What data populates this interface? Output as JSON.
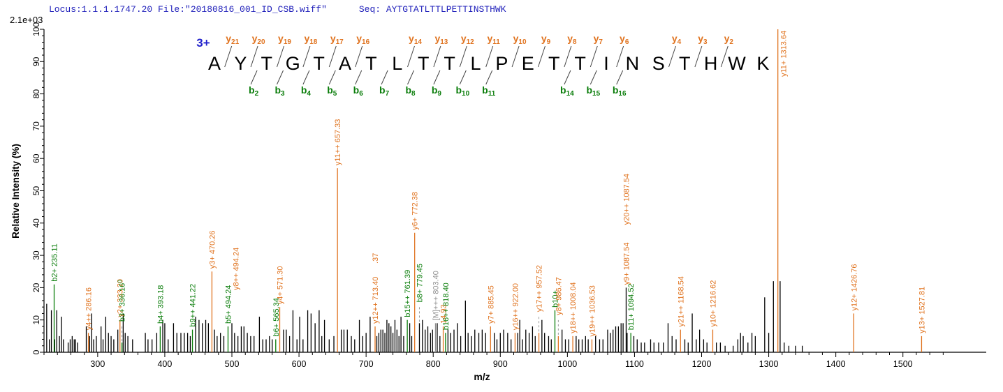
{
  "header": {
    "locus_file": "Locus:1.1.1.1747.20 File:\"20180816_001_ID_CSB.wiff\"",
    "seq": "Seq: AYTGTATLTTLPETTINSTHWK"
  },
  "scale_note": "2.1e+03",
  "precursor_charge": "3+",
  "colors": {
    "b_ion": "#0a7d0a",
    "y_ion": "#e0731f",
    "precursor": "#909090",
    "peak": "#000000",
    "header_blue": "#2222bb",
    "charge_blue": "#2222cc",
    "axis": "#000000"
  },
  "peptide": {
    "residues": [
      "A",
      "Y",
      "T",
      "G",
      "T",
      "A",
      "T",
      "L",
      "T",
      "T",
      "L",
      "P",
      "E",
      "T",
      "T",
      "I",
      "N",
      "S",
      "T",
      "H",
      "W",
      "K"
    ],
    "y_ions": [
      {
        "n": "21",
        "boundary": 1
      },
      {
        "n": "20",
        "boundary": 2
      },
      {
        "n": "19",
        "boundary": 3
      },
      {
        "n": "18",
        "boundary": 4
      },
      {
        "n": "17",
        "boundary": 5
      },
      {
        "n": "16",
        "boundary": 6
      },
      {
        "n": "14",
        "boundary": 8
      },
      {
        "n": "13",
        "boundary": 9
      },
      {
        "n": "12",
        "boundary": 10
      },
      {
        "n": "11",
        "boundary": 11
      },
      {
        "n": "10",
        "boundary": 12
      },
      {
        "n": "9",
        "boundary": 13
      },
      {
        "n": "8",
        "boundary": 14
      },
      {
        "n": "7",
        "boundary": 15
      },
      {
        "n": "6",
        "boundary": 16
      },
      {
        "n": "4",
        "boundary": 18
      },
      {
        "n": "3",
        "boundary": 19
      },
      {
        "n": "2",
        "boundary": 20
      }
    ],
    "b_ions": [
      {
        "n": "2",
        "boundary": 2
      },
      {
        "n": "3",
        "boundary": 3
      },
      {
        "n": "4",
        "boundary": 4
      },
      {
        "n": "5",
        "boundary": 5
      },
      {
        "n": "6",
        "boundary": 6
      },
      {
        "n": "7",
        "boundary": 7
      },
      {
        "n": "8",
        "boundary": 8
      },
      {
        "n": "9",
        "boundary": 9
      },
      {
        "n": "10",
        "boundary": 10
      },
      {
        "n": "11",
        "boundary": 11
      },
      {
        "n": "14",
        "boundary": 14
      },
      {
        "n": "15",
        "boundary": 15
      },
      {
        "n": "16",
        "boundary": 16
      }
    ]
  },
  "axes": {
    "x_label": "m/z",
    "y_label": "Relative  Intensity  (%)",
    "x_min": 220,
    "x_max": 1620,
    "x_major_ticks": [
      300,
      400,
      500,
      600,
      700,
      800,
      900,
      1000,
      1100,
      1200,
      1300,
      1400,
      1500
    ],
    "x_minor_step": 20,
    "y_min": 0,
    "y_max": 100,
    "y_major_step": 10,
    "y_minor_step": 2
  },
  "chart_data": {
    "type": "bar",
    "subtype": "ms2_peptide_fragment_spectrum",
    "title": "",
    "xlabel": "m/z",
    "ylabel": "Relative Intensity (%)",
    "xlim": [
      220,
      1620
    ],
    "ylim": [
      0,
      100
    ],
    "base_peak_intensity": "2.1e+03",
    "sequence": "AYTGTATLTTLPETTINSTHWK",
    "labeled_peaks": [
      {
        "mz": 235.11,
        "pct": 21,
        "ion": "b",
        "label": "b2+ 235.11"
      },
      {
        "mz": 286.16,
        "pct": 6,
        "ion": "y",
        "label": "y4++ 286.16"
      },
      {
        "mz": 333.2,
        "pct": 10,
        "ion": "y",
        "label": "y2+ 333.20"
      },
      {
        "mz": 336.16,
        "pct": 3,
        "ion": "b",
        "label": "b3+ 336.16",
        "sup": "0",
        "dashed": true
      },
      {
        "mz": 393.18,
        "pct": 8,
        "ion": "b",
        "label": "b4+ 393.18"
      },
      {
        "mz": 441.22,
        "pct": 7,
        "ion": "b",
        "label": "b9++ 441.22"
      },
      {
        "mz": 470.26,
        "pct": 25,
        "ion": "y",
        "label": "y3+ 470.26"
      },
      {
        "mz": 494.24,
        "pct": 8,
        "ion": "b",
        "label": "b5+ 494.24",
        "label2": {
          "text": "y8++ 494.24",
          "ion": "y",
          "dx": 11,
          "raise": 48
        }
      },
      {
        "mz": 565.34,
        "pct": 4,
        "ion": "b",
        "label": "b6+ 565.34"
      },
      {
        "mz": 571.3,
        "pct": 14,
        "ion": "y",
        "label": "y4+ 571.30"
      },
      {
        "mz": 657.33,
        "pct": 57,
        "ion": "y",
        "label": "y11++ 657.33"
      },
      {
        "mz": 713.4,
        "pct": 8,
        "ion": "y",
        "label": "y12++ 713.40",
        "frag": ".37"
      },
      {
        "mz": 761.39,
        "pct": 10,
        "ion": "b",
        "label": "b15++ 761.39"
      },
      {
        "mz": 772.38,
        "pct": 37,
        "ion": "y",
        "label": "y6+ 772.38"
      },
      {
        "mz": 779.45,
        "pct": 9,
        "ion": "b",
        "label": "b8+ 779.45",
        "dashed": true,
        "peak_color": "#000000"
      },
      {
        "mz": 803.4,
        "pct": 9,
        "ion": "M",
        "label": "[M]+++ 803.40"
      },
      {
        "mz": 814.93,
        "pct": 8,
        "ion": "y",
        "label": "14.93"
      },
      {
        "mz": 818.4,
        "pct": 6,
        "ion": "b",
        "label": "b16++ 818.40"
      },
      {
        "mz": 885.45,
        "pct": 8,
        "ion": "y",
        "label": "y7+ 885.45"
      },
      {
        "mz": 922.0,
        "pct": 6,
        "ion": "y",
        "label": "y16++ 922.00"
      },
      {
        "mz": 957.52,
        "pct": 6,
        "ion": "y",
        "label": "y17++ 957.52",
        "dashed": true
      },
      {
        "mz": 981.4,
        "pct": 13,
        "ion": "b",
        "label": "b10+"
      },
      {
        "mz": 986.47,
        "pct": 5,
        "ion": "y",
        "label": "y8+ 986.47",
        "dashed": true
      },
      {
        "mz": 1008.04,
        "pct": 5,
        "ion": "y",
        "label": "y18++ 1008.04"
      },
      {
        "mz": 1036.53,
        "pct": 4,
        "ion": "y",
        "label": "y19++ 1036.53"
      },
      {
        "mz": 1087.54,
        "pct": 20,
        "ion": "y",
        "peak_color": "#000000",
        "label": "y9+ 1087.54",
        "label2": {
          "text": "y20++ 1087.54",
          "ion": "y",
          "dx": 0,
          "raise": 86
        }
      },
      {
        "mz": 1094.52,
        "pct": 6,
        "ion": "b",
        "label": "b11+ 1094.52"
      },
      {
        "mz": 1168.54,
        "pct": 7,
        "ion": "y",
        "label": "y21++ 1168.54"
      },
      {
        "mz": 1216.62,
        "pct": 7,
        "ion": "y",
        "label": "y10+ 1216.62"
      },
      {
        "mz": 1313.64,
        "pct": 100,
        "ion": "y",
        "label": "y11+ 1313.64"
      },
      {
        "mz": 1426.76,
        "pct": 12,
        "ion": "y",
        "label": "y12+ 1426.76"
      },
      {
        "mz": 1527.81,
        "pct": 5,
        "ion": "y",
        "label": "y13+ 1527.81"
      }
    ],
    "unlabeled_peaks": [
      [
        224,
        15
      ],
      [
        228,
        4
      ],
      [
        231,
        13
      ],
      [
        236,
        4
      ],
      [
        239,
        13
      ],
      [
        243,
        5
      ],
      [
        246,
        11
      ],
      [
        249,
        4
      ],
      [
        256,
        3
      ],
      [
        259,
        4
      ],
      [
        262,
        5
      ],
      [
        265,
        4
      ],
      [
        267,
        4
      ],
      [
        270,
        3
      ],
      [
        283,
        8
      ],
      [
        288,
        5
      ],
      [
        291,
        12
      ],
      [
        294,
        4
      ],
      [
        298,
        5
      ],
      [
        305,
        8
      ],
      [
        308,
        4
      ],
      [
        312,
        11
      ],
      [
        316,
        6
      ],
      [
        320,
        5
      ],
      [
        324,
        4
      ],
      [
        330,
        7
      ],
      [
        338,
        12
      ],
      [
        341,
        6
      ],
      [
        345,
        5
      ],
      [
        352,
        4
      ],
      [
        371,
        6
      ],
      [
        375,
        4
      ],
      [
        381,
        4
      ],
      [
        388,
        6
      ],
      [
        397,
        10
      ],
      [
        400,
        9
      ],
      [
        405,
        4
      ],
      [
        413,
        9
      ],
      [
        418,
        6
      ],
      [
        424,
        6
      ],
      [
        429,
        6
      ],
      [
        434,
        6
      ],
      [
        438,
        5
      ],
      [
        446,
        11
      ],
      [
        451,
        10
      ],
      [
        456,
        9
      ],
      [
        461,
        10
      ],
      [
        465,
        9
      ],
      [
        474,
        7
      ],
      [
        478,
        5
      ],
      [
        483,
        6
      ],
      [
        488,
        5
      ],
      [
        500,
        9
      ],
      [
        504,
        6
      ],
      [
        509,
        5
      ],
      [
        514,
        8
      ],
      [
        518,
        8
      ],
      [
        523,
        6
      ],
      [
        528,
        5
      ],
      [
        533,
        5
      ],
      [
        541,
        11
      ],
      [
        546,
        4
      ],
      [
        551,
        4
      ],
      [
        556,
        5
      ],
      [
        560,
        4
      ],
      [
        577,
        7
      ],
      [
        581,
        7
      ],
      [
        586,
        5
      ],
      [
        591,
        13
      ],
      [
        597,
        4
      ],
      [
        601,
        11
      ],
      [
        606,
        4
      ],
      [
        613,
        13
      ],
      [
        618,
        12
      ],
      [
        624,
        9
      ],
      [
        630,
        13
      ],
      [
        634,
        5
      ],
      [
        638,
        10
      ],
      [
        645,
        4
      ],
      [
        652,
        5
      ],
      [
        663,
        7
      ],
      [
        667,
        7
      ],
      [
        672,
        7
      ],
      [
        678,
        5
      ],
      [
        683,
        4
      ],
      [
        690,
        10
      ],
      [
        695,
        5
      ],
      [
        700,
        6
      ],
      [
        706,
        11
      ],
      [
        716,
        5
      ],
      [
        719,
        6
      ],
      [
        722,
        7
      ],
      [
        725,
        7
      ],
      [
        728,
        6
      ],
      [
        731,
        10
      ],
      [
        734,
        9
      ],
      [
        737,
        8
      ],
      [
        740,
        6
      ],
      [
        743,
        10
      ],
      [
        746,
        7
      ],
      [
        749,
        5
      ],
      [
        752,
        11
      ],
      [
        756,
        5
      ],
      [
        765,
        9
      ],
      [
        768,
        5
      ],
      [
        784,
        10
      ],
      [
        788,
        7
      ],
      [
        792,
        8
      ],
      [
        796,
        6
      ],
      [
        799,
        7
      ],
      [
        806,
        9
      ],
      [
        810,
        5
      ],
      [
        822,
        7
      ],
      [
        826,
        6
      ],
      [
        831,
        7
      ],
      [
        836,
        9
      ],
      [
        841,
        5
      ],
      [
        848,
        16
      ],
      [
        852,
        6
      ],
      [
        857,
        5
      ],
      [
        862,
        7
      ],
      [
        868,
        6
      ],
      [
        873,
        7
      ],
      [
        878,
        6
      ],
      [
        891,
        6
      ],
      [
        895,
        4
      ],
      [
        900,
        6
      ],
      [
        905,
        7
      ],
      [
        911,
        6
      ],
      [
        916,
        4
      ],
      [
        926,
        6
      ],
      [
        929,
        10
      ],
      [
        933,
        4
      ],
      [
        938,
        7
      ],
      [
        943,
        6
      ],
      [
        948,
        8
      ],
      [
        952,
        5
      ],
      [
        962,
        10
      ],
      [
        966,
        6
      ],
      [
        972,
        5
      ],
      [
        976,
        4
      ],
      [
        992,
        7
      ],
      [
        997,
        4
      ],
      [
        1002,
        4
      ],
      [
        1013,
        5
      ],
      [
        1017,
        4
      ],
      [
        1022,
        4
      ],
      [
        1027,
        5
      ],
      [
        1031,
        4
      ],
      [
        1042,
        5
      ],
      [
        1048,
        4
      ],
      [
        1053,
        4
      ],
      [
        1060,
        7
      ],
      [
        1064,
        6
      ],
      [
        1068,
        7
      ],
      [
        1072,
        8
      ],
      [
        1076,
        8
      ],
      [
        1080,
        9
      ],
      [
        1083,
        9
      ],
      [
        1089,
        6
      ],
      [
        1099,
        5
      ],
      [
        1104,
        4
      ],
      [
        1110,
        3
      ],
      [
        1115,
        3
      ],
      [
        1124,
        4
      ],
      [
        1129,
        3
      ],
      [
        1136,
        3
      ],
      [
        1143,
        3
      ],
      [
        1150,
        9
      ],
      [
        1156,
        5
      ],
      [
        1162,
        4
      ],
      [
        1175,
        4
      ],
      [
        1180,
        3
      ],
      [
        1186,
        12
      ],
      [
        1192,
        4
      ],
      [
        1197,
        7
      ],
      [
        1203,
        4
      ],
      [
        1208,
        3
      ],
      [
        1222,
        3
      ],
      [
        1228,
        3
      ],
      [
        1235,
        2
      ],
      [
        1247,
        2
      ],
      [
        1254,
        4
      ],
      [
        1258,
        6
      ],
      [
        1262,
        5
      ],
      [
        1269,
        3
      ],
      [
        1275,
        6
      ],
      [
        1280,
        5
      ],
      [
        1294,
        17
      ],
      [
        1300,
        6
      ],
      [
        1307,
        22
      ],
      [
        1317,
        22
      ],
      [
        1323,
        3
      ],
      [
        1330,
        2
      ],
      [
        1340,
        2
      ],
      [
        1350,
        2
      ]
    ]
  }
}
